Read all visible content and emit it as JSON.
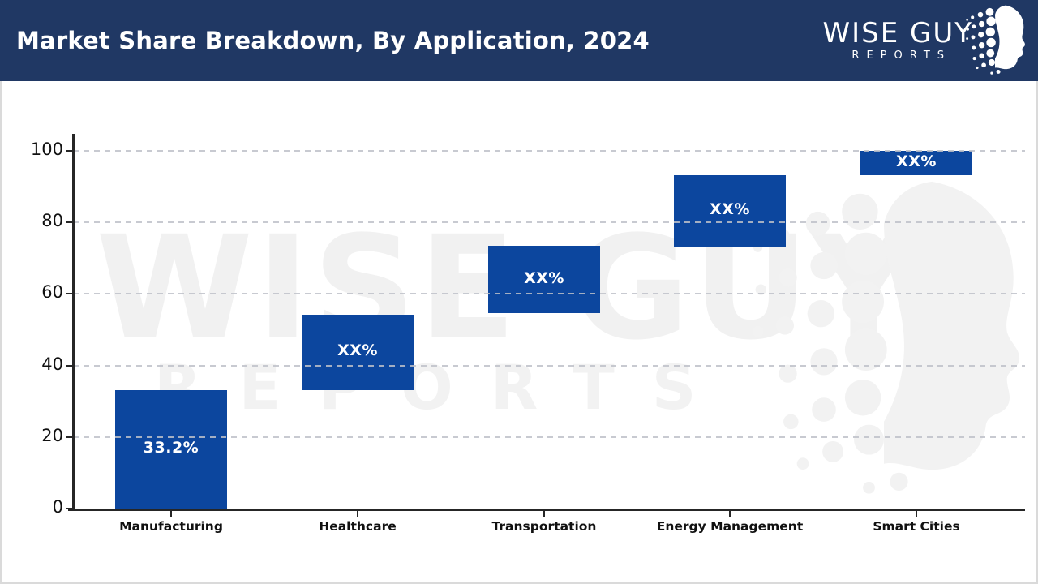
{
  "header": {
    "title": "Market Share Breakdown, By Application, 2024",
    "logo": {
      "line1": "WISE GUY",
      "line2": "REPORTS",
      "icon": "face-profile-dots-icon"
    }
  },
  "watermark": {
    "line1": "WISE GUY",
    "line2": "REPORTS"
  },
  "chart_data": {
    "type": "bar",
    "subtype": "waterfall",
    "title": "Market Share Breakdown, By Application, 2024",
    "categories": [
      "Manufacturing",
      "Healthcare",
      "Transportation",
      "Energy Management",
      "Smart Cities"
    ],
    "segments": [
      {
        "category": "Manufacturing",
        "start": 0,
        "end": 33.2,
        "label": "33.2%"
      },
      {
        "category": "Healthcare",
        "start": 33.2,
        "end": 54.2,
        "label": "XX%"
      },
      {
        "category": "Transportation",
        "start": 54.6,
        "end": 73.5,
        "label": "XX%"
      },
      {
        "category": "Energy Management",
        "start": 73.3,
        "end": 93.1,
        "label": "XX%"
      },
      {
        "category": "Smart Cities",
        "start": 93.1,
        "end": 100,
        "label": "XX%"
      }
    ],
    "yticks": [
      0,
      20,
      40,
      60,
      80,
      100
    ],
    "ylim": [
      0,
      105
    ],
    "xlabel": "",
    "ylabel": "",
    "grid": "horizontal-dashed",
    "legend": "none",
    "bar_color": "#0c469e",
    "value_label_color": "#ffffff"
  },
  "colors": {
    "header_bg": "#203864",
    "bar": "#0c469e",
    "axis": "#262626",
    "grid": "#bec1c9",
    "watermark": "#f1f1f1",
    "frame_border": "#dadada",
    "title_text": "#ffffff"
  }
}
